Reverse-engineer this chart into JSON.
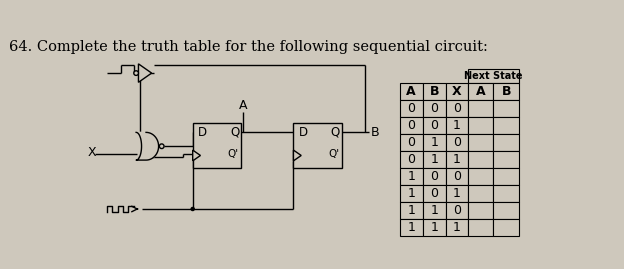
{
  "title": "64. Complete the truth table for the following sequential circuit:",
  "title_fontsize": 10.5,
  "bg_color": "#cec8bc",
  "table_header_top": "Next State",
  "table_cols": [
    "A",
    "B",
    "X",
    "A",
    "B"
  ],
  "table_rows": [
    [
      "0",
      "0",
      "0",
      "",
      ""
    ],
    [
      "0",
      "0",
      "1",
      "",
      ""
    ],
    [
      "0",
      "1",
      "0",
      "",
      ""
    ],
    [
      "0",
      "1",
      "1",
      "",
      ""
    ],
    [
      "1",
      "0",
      "0",
      "",
      ""
    ],
    [
      "1",
      "0",
      "1",
      "",
      ""
    ],
    [
      "1",
      "1",
      "0",
      "",
      ""
    ],
    [
      "1",
      "1",
      "1",
      "",
      ""
    ]
  ],
  "label_A": "A",
  "label_B": "B",
  "label_X": "X",
  "label_D": "D",
  "label_Q": "Q",
  "label_Qp": "Q'"
}
